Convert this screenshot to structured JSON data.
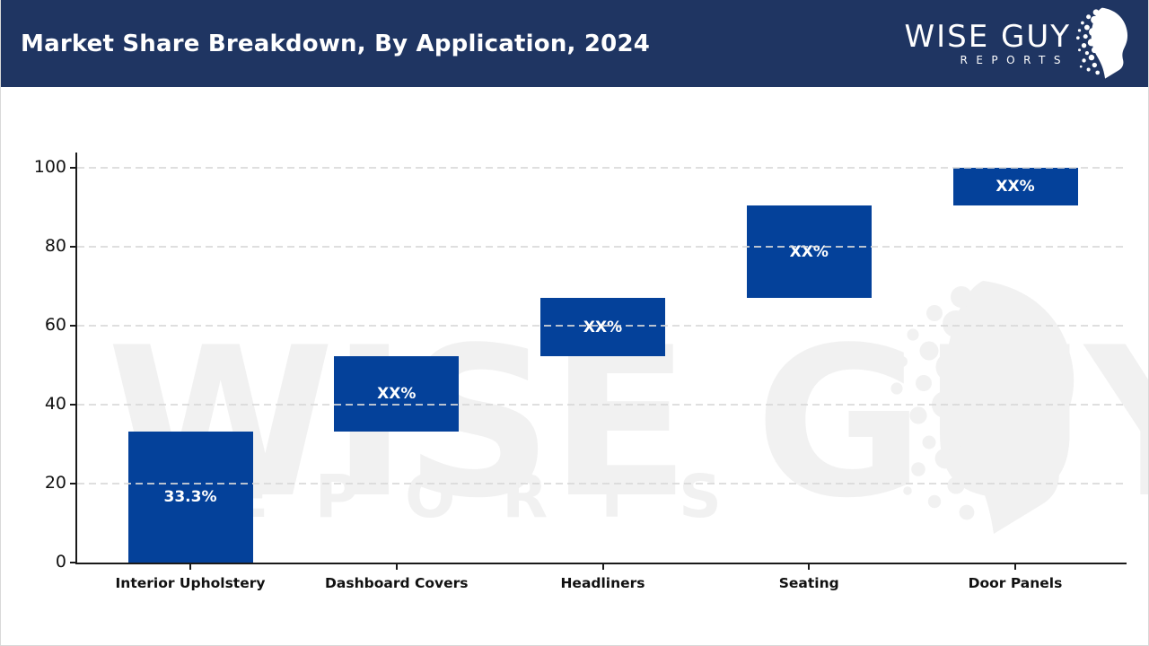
{
  "header": {
    "title": "Market Share Breakdown, By Application, 2024",
    "logo_line1": "WISE GUY",
    "logo_line2": "REPORTS"
  },
  "watermark": {
    "line1": "WISE GUY",
    "line2": "REPORTS"
  },
  "colors": {
    "header_bg": "#1f3562",
    "bar": "#04419a",
    "bar_label": "#ffffff",
    "gridline": "#d9d9d9",
    "axis": "#1a1a1a",
    "watermark": "#f1f1f1"
  },
  "chart_data": {
    "type": "bar",
    "subtype": "waterfall",
    "title": "Market Share Breakdown, By Application, 2024",
    "categories": [
      "Interior Upholstery",
      "Dashboard Covers",
      "Headliners",
      "Seating",
      "Door Panels"
    ],
    "segments": [
      {
        "category": "Interior Upholstery",
        "start": 0,
        "end": 33.3,
        "label": "33.3%"
      },
      {
        "category": "Dashboard Covers",
        "start": 33.3,
        "end": 52.4,
        "label": "XX%"
      },
      {
        "category": "Headliners",
        "start": 52.4,
        "end": 67.0,
        "label": "XX%"
      },
      {
        "category": "Seating",
        "start": 67.0,
        "end": 90.5,
        "label": "XX%"
      },
      {
        "category": "Door Panels",
        "start": 90.5,
        "end": 100.0,
        "label": "XX%"
      }
    ],
    "yticks": [
      0,
      20,
      40,
      60,
      80,
      100
    ],
    "ylim": [
      0,
      104
    ],
    "xlabel": "",
    "ylabel": "",
    "legend": null,
    "grid": "horizontal-dashed",
    "bar_label_note": "values masked as XX% except first bar"
  }
}
